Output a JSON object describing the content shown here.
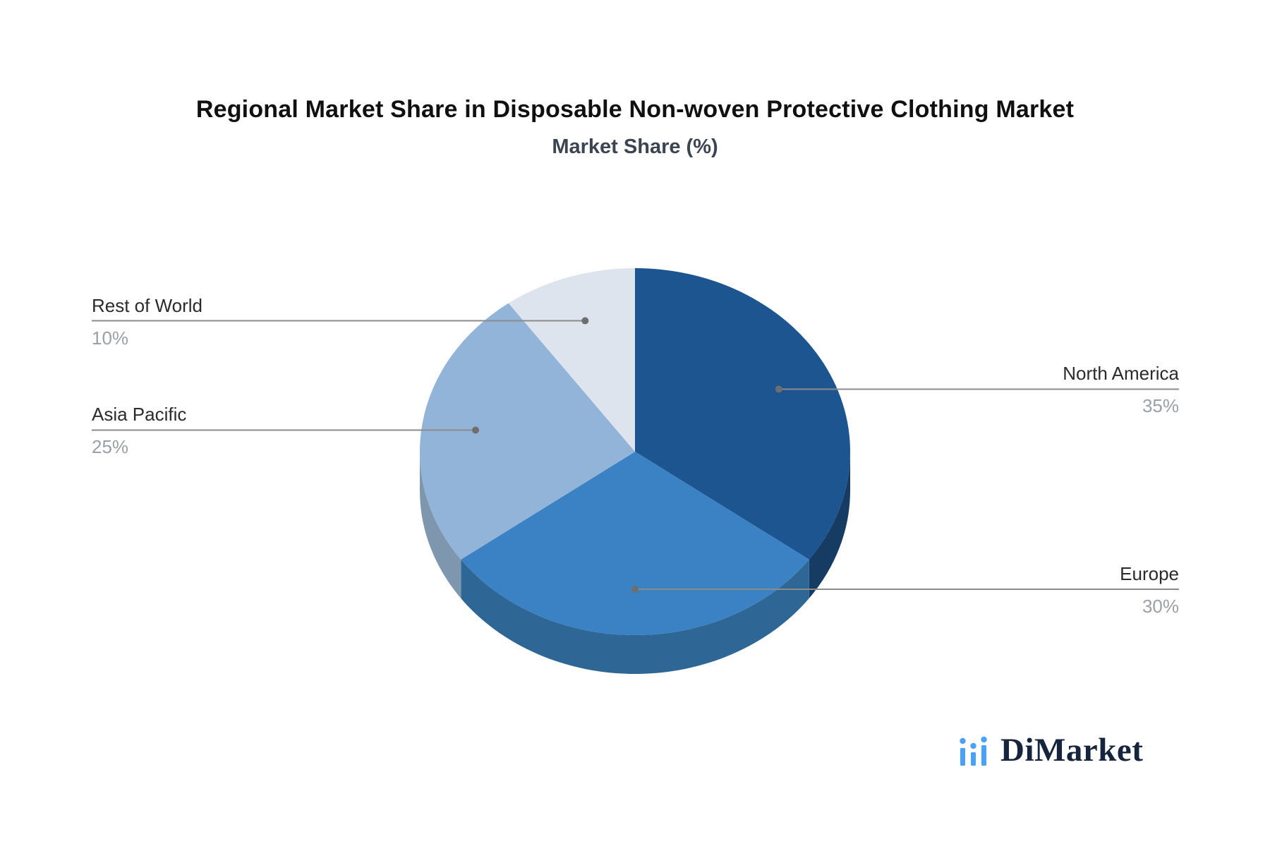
{
  "title": "Regional Market Share in Disposable Non-woven Protective Clothing Market",
  "subtitle": "Market Share (%)",
  "chart_data": {
    "type": "pie",
    "is_3d": true,
    "start_angle_deg": 0,
    "direction": "clockwise",
    "unit": "%",
    "title": "Regional Market Share in Disposable Non-woven Protective Clothing Market",
    "subtitle": "Market Share (%)",
    "legend_position": "none",
    "label_style": "leader-lines-with-dots",
    "slices": [
      {
        "name": "North America",
        "value": 35,
        "pct_label": "35%",
        "color": "#1d5591",
        "side_color": "#163c63"
      },
      {
        "name": "Europe",
        "value": 30,
        "pct_label": "30%",
        "color": "#3a82c4",
        "side_color": "#2e6795"
      },
      {
        "name": "Asia Pacific",
        "value": 25,
        "pct_label": "25%",
        "color": "#92b4d9",
        "side_color": "#7e96ae"
      },
      {
        "name": "Rest of World",
        "value": 10,
        "pct_label": "10%",
        "color": "#dee4ee",
        "side_color": "#c3cdd9"
      }
    ]
  },
  "styles": {
    "background": "#ffffff",
    "title_color": "#101010",
    "subtitle_color": "#3b4450",
    "label_name_color": "#2b2b2b",
    "label_pct_color": "#9aa0a6",
    "leader_line_color": "#8b8b8b",
    "leader_dot_color": "#6e6e6e"
  },
  "logo": {
    "text": "DiMarket",
    "icon": "bar-line-chart-icon",
    "icon_color": "#4aa2f6",
    "text_color": "#16243d"
  }
}
